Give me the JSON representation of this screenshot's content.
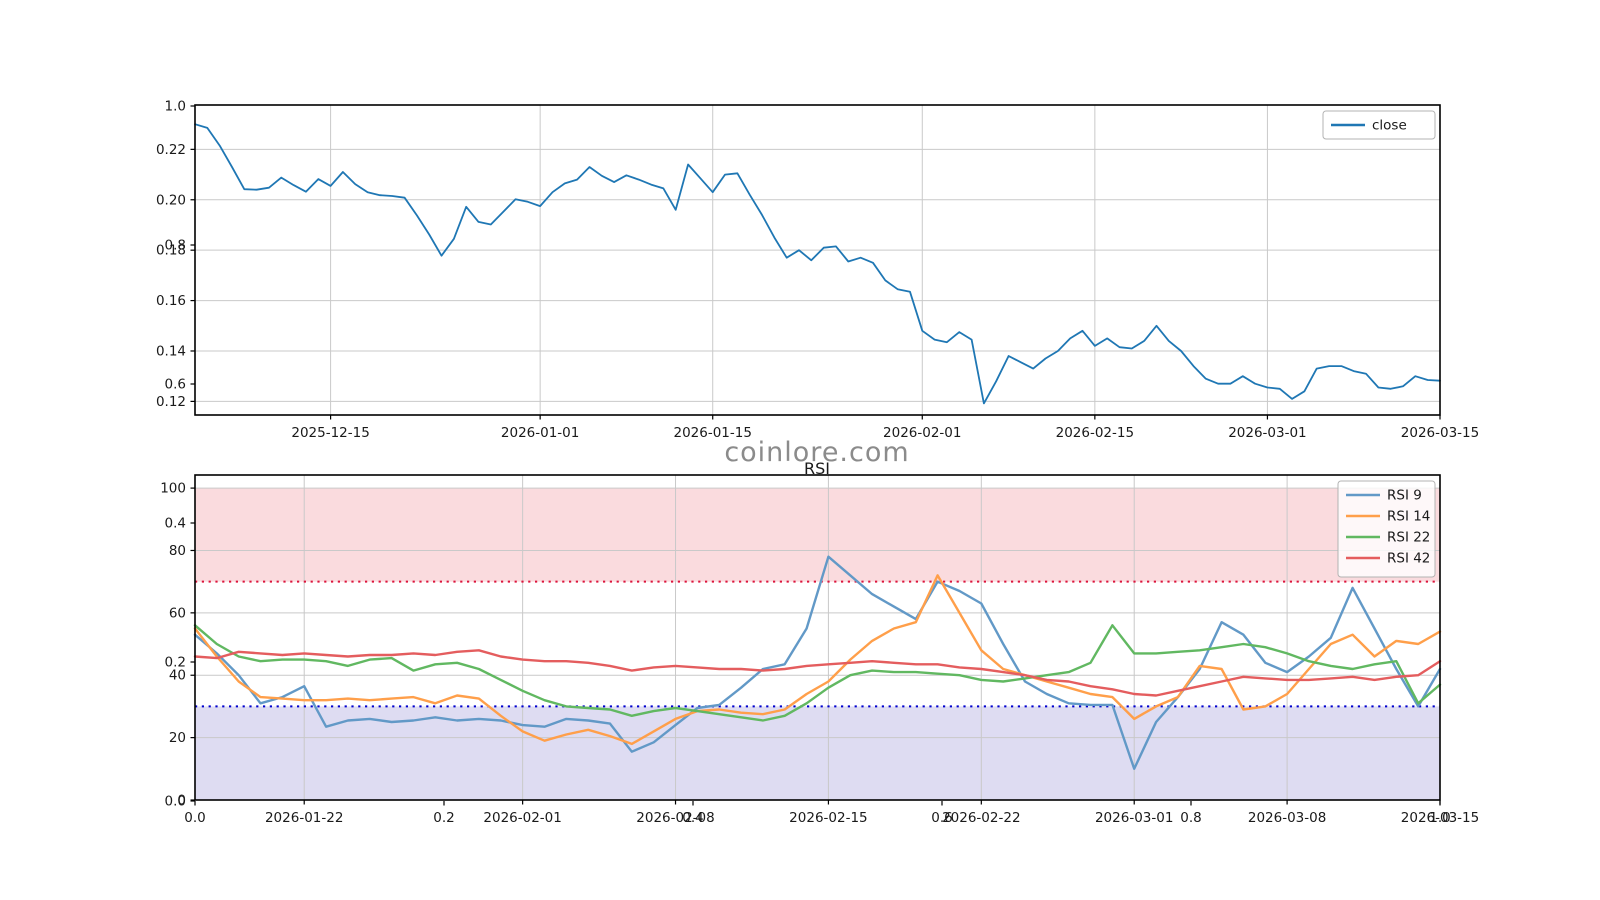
{
  "watermark": "coinlore.com",
  "rsi_title": "RSI",
  "colors": {
    "close": "#1f77b4",
    "rsi9": "#6299c7",
    "rsi14": "#ff9f4a",
    "rsi22": "#61b861",
    "rsi42": "#e45d5e",
    "overbought_band": "#fadbde",
    "oversold_band": "#dedcf2",
    "overbought_line": "#dc143c",
    "oversold_line": "#0000cd",
    "grid": "#c9c9c9",
    "spine": "#000000",
    "tick_text": "#1a1a1a",
    "legend_border": "#b3b3b3"
  },
  "figure_axis_overlay": {
    "x_ticks": [
      {
        "label": "0.0",
        "f": 0.0
      },
      {
        "label": "0.2",
        "f": 0.2
      },
      {
        "label": "0.4",
        "f": 0.4
      },
      {
        "label": "0.6",
        "f": 0.6
      },
      {
        "label": "0.8",
        "f": 0.8
      },
      {
        "label": "1.0",
        "f": 1.0
      }
    ],
    "y_ticks": [
      {
        "label": "1.0",
        "f": 1.0
      },
      {
        "label": "0.8",
        "f": 0.8
      },
      {
        "label": "0.6",
        "f": 0.6
      },
      {
        "label": "0.4",
        "f": 0.4
      },
      {
        "label": "0.2",
        "f": 0.2
      },
      {
        "label": "0.0",
        "f": 0.0
      }
    ]
  },
  "chart_data": [
    {
      "type": "line",
      "name": "price",
      "x_start_date": "2025-12-04",
      "x_end_date": "2026-03-15",
      "ylim": [
        0.1146,
        0.2376
      ],
      "yticks": [
        0.12,
        0.14,
        0.16,
        0.18,
        0.2,
        0.22
      ],
      "ytick_labels": [
        "0.12",
        "0.14",
        "0.16",
        "0.18",
        "0.20",
        "0.22"
      ],
      "xticks": [
        {
          "label": "2025-12-15",
          "day": 11
        },
        {
          "label": "2026-01-01",
          "day": 28
        },
        {
          "label": "2026-01-15",
          "day": 42
        },
        {
          "label": "2026-02-01",
          "day": 59
        },
        {
          "label": "2026-02-15",
          "day": 73
        },
        {
          "label": "2026-03-01",
          "day": 87
        },
        {
          "label": "2026-03-15",
          "day": 101
        }
      ],
      "legend": [
        {
          "label": "close",
          "color_key": "close"
        }
      ],
      "series": [
        {
          "name": "close",
          "color_key": "close",
          "width": 1.8,
          "values": [
            0.23,
            0.2285,
            0.2215,
            0.213,
            0.2042,
            0.204,
            0.2048,
            0.2088,
            0.2058,
            0.2032,
            0.2082,
            0.2055,
            0.211,
            0.2062,
            0.203,
            0.2018,
            0.2015,
            0.2008,
            0.1938,
            0.1862,
            0.1778,
            0.1845,
            0.1972,
            0.1912,
            0.1902,
            0.1952,
            0.2002,
            0.1992,
            0.1975,
            0.203,
            0.2065,
            0.208,
            0.213,
            0.2095,
            0.207,
            0.2097,
            0.208,
            0.206,
            0.2045,
            0.196,
            0.214,
            0.2085,
            0.203,
            0.21,
            0.2105,
            0.202,
            0.194,
            0.185,
            0.177,
            0.18,
            0.176,
            0.181,
            0.1815,
            0.1755,
            0.177,
            0.175,
            0.168,
            0.1645,
            0.1635,
            0.148,
            0.1445,
            0.1435,
            0.1475,
            0.1445,
            0.1192,
            0.128,
            0.138,
            0.1355,
            0.133,
            0.137,
            0.14,
            0.145,
            0.148,
            0.142,
            0.145,
            0.1415,
            0.141,
            0.144,
            0.15,
            0.144,
            0.14,
            0.134,
            0.129,
            0.127,
            0.127,
            0.13,
            0.127,
            0.1255,
            0.125,
            0.121,
            0.124,
            0.133,
            0.134,
            0.134,
            0.132,
            0.131,
            0.1255,
            0.125,
            0.126,
            0.13,
            0.1285,
            0.1282
          ]
        }
      ]
    },
    {
      "type": "line",
      "name": "rsi",
      "title": "RSI",
      "x_start_date": "2026-01-17",
      "x_end_date": "2026-03-15",
      "ylim": [
        0,
        104.2
      ],
      "yticks": [
        0,
        20,
        40,
        60,
        80,
        100
      ],
      "ytick_labels": [
        "0",
        "20",
        "40",
        "60",
        "80",
        "100"
      ],
      "xticks": [
        {
          "label": "2026-01-22",
          "day": 5
        },
        {
          "label": "2026-02-01",
          "day": 15
        },
        {
          "label": "2026-02-08",
          "day": 22
        },
        {
          "label": "2026-02-15",
          "day": 29
        },
        {
          "label": "2026-02-22",
          "day": 36
        },
        {
          "label": "2026-03-01",
          "day": 43
        },
        {
          "label": "2026-03-08",
          "day": 50
        },
        {
          "label": "2026-03-15",
          "day": 57
        }
      ],
      "bands": [
        {
          "from": 70,
          "to": 100,
          "color_key": "overbought_band"
        },
        {
          "from": 0,
          "to": 30,
          "color_key": "oversold_band"
        }
      ],
      "thresholds": [
        {
          "value": 70,
          "color_key": "overbought_line"
        },
        {
          "value": 30,
          "color_key": "oversold_line"
        }
      ],
      "legend": [
        {
          "label": "RSI 9",
          "color_key": "rsi9"
        },
        {
          "label": "RSI 14",
          "color_key": "rsi14"
        },
        {
          "label": "RSI 22",
          "color_key": "rsi22"
        },
        {
          "label": "RSI 42",
          "color_key": "rsi42"
        }
      ],
      "series": [
        {
          "name": "RSI 9",
          "color_key": "rsi9",
          "width": 2.4,
          "values": [
            53,
            47,
            40,
            31,
            33,
            36.5,
            23.5,
            25.5,
            26,
            25,
            25.5,
            26.5,
            25.5,
            26,
            25.5,
            24,
            23.5,
            26,
            25.5,
            24.5,
            15.5,
            18.5,
            24,
            29.5,
            30.5,
            36,
            42,
            43.5,
            55,
            78,
            72,
            66,
            62,
            58,
            70,
            67,
            63,
            50,
            38,
            34,
            31,
            30.5,
            30.5,
            10,
            25,
            33,
            42,
            57,
            53,
            44,
            41,
            46,
            52,
            68,
            55,
            42,
            30,
            42
          ]
        },
        {
          "name": "RSI 14",
          "color_key": "rsi14",
          "width": 2.4,
          "values": [
            55,
            46,
            38,
            33,
            32.5,
            32,
            32,
            32.5,
            32,
            32.5,
            33,
            31,
            33.5,
            32.5,
            27,
            22,
            19,
            21,
            22.5,
            20.5,
            18,
            22,
            26,
            28.5,
            29,
            28,
            27.5,
            29,
            34,
            38,
            45,
            51,
            55,
            57,
            72,
            60,
            48,
            42,
            40,
            38,
            36,
            34,
            33,
            26,
            30,
            33,
            43,
            42,
            29,
            30,
            34,
            42,
            50,
            53,
            46,
            51,
            50,
            54
          ]
        },
        {
          "name": "RSI 22",
          "color_key": "rsi22",
          "width": 2.4,
          "values": [
            56,
            50,
            46,
            44.5,
            45,
            45,
            44.5,
            43,
            45,
            45.5,
            41.5,
            43.5,
            44,
            42,
            38.5,
            35,
            32,
            30,
            29.5,
            29,
            27,
            28.5,
            29.5,
            28.5,
            27.5,
            26.5,
            25.5,
            27,
            31,
            36,
            40,
            41.5,
            41,
            41,
            40.5,
            40,
            38.5,
            38,
            39,
            40,
            41,
            44,
            56,
            47,
            47,
            47.5,
            48,
            49,
            50,
            49,
            47,
            44.5,
            43,
            42,
            43.5,
            44.5,
            31,
            37
          ]
        },
        {
          "name": "RSI 42",
          "color_key": "rsi42",
          "width": 2.4,
          "values": [
            46,
            45.5,
            47.5,
            47,
            46.5,
            47,
            46.5,
            46,
            46.5,
            46.5,
            47,
            46.5,
            47.5,
            48,
            46,
            45,
            44.5,
            44.5,
            44,
            43,
            41.5,
            42.5,
            43,
            42.5,
            42,
            42,
            41.5,
            42,
            43,
            43.5,
            44,
            44.5,
            44,
            43.5,
            43.5,
            42.5,
            42,
            41,
            40,
            38.5,
            38,
            36.5,
            35.5,
            34,
            33.5,
            35,
            36.5,
            38,
            39.5,
            39,
            38.5,
            38.5,
            39,
            39.5,
            38.5,
            39.5,
            40,
            44.5
          ]
        }
      ]
    }
  ]
}
